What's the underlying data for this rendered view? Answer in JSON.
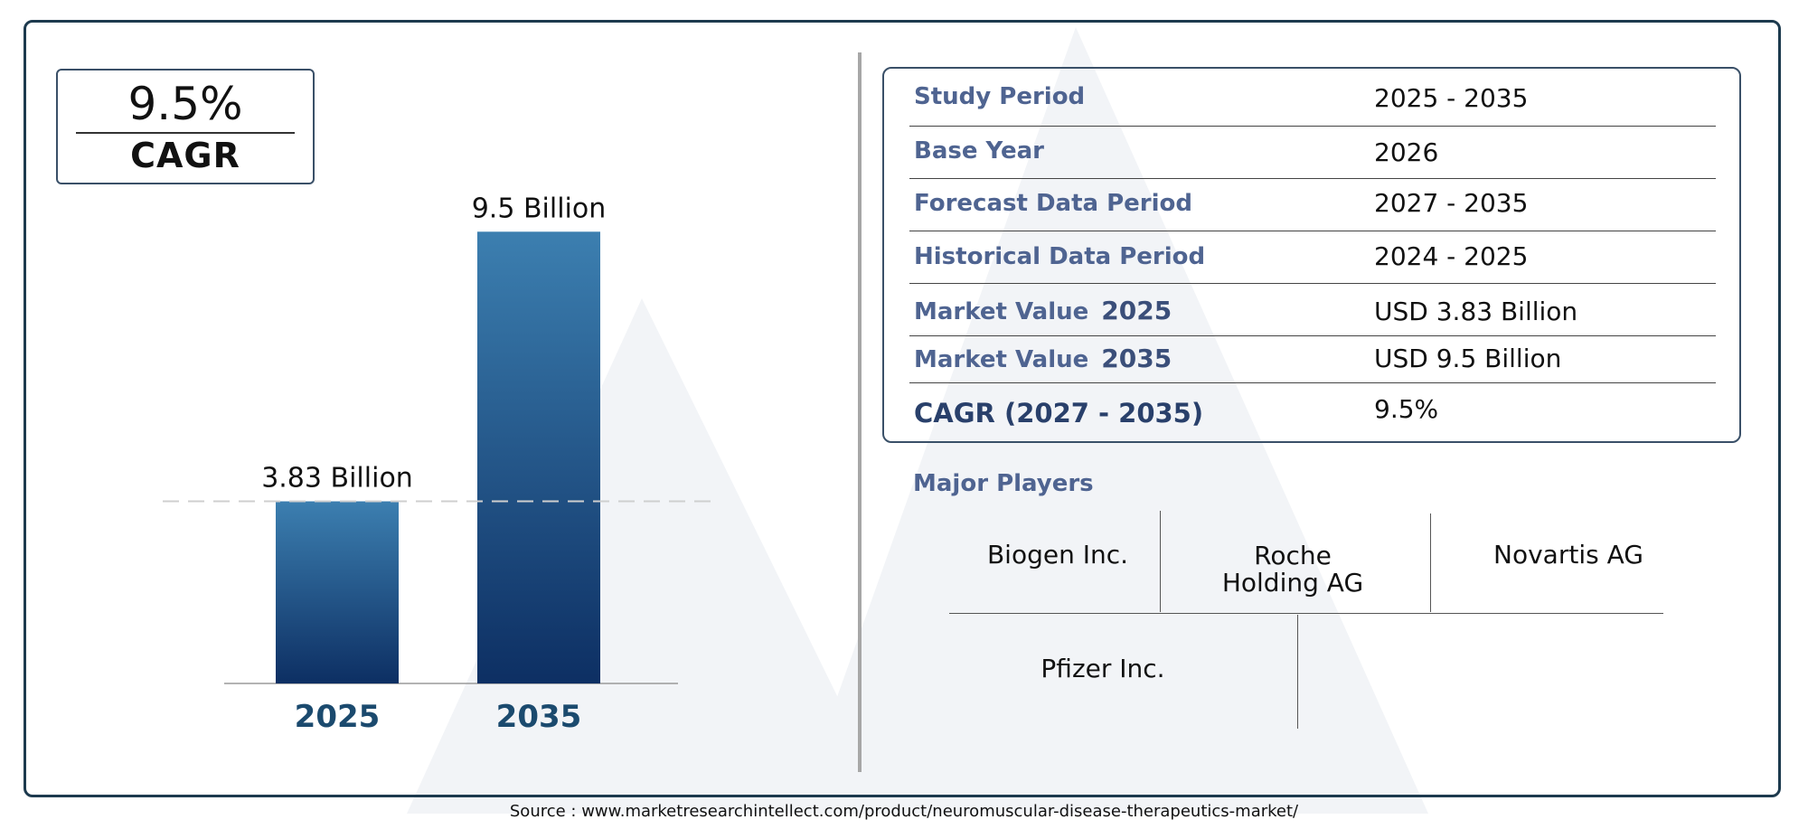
{
  "cagr_box": {
    "value": "9.5%",
    "label": "CAGR"
  },
  "chart_data": {
    "type": "bar",
    "categories": [
      "2025",
      "2035"
    ],
    "values": [
      3.83,
      9.5
    ],
    "data_labels": [
      "3.83 Billion",
      "9.5 Billion"
    ],
    "ylim": [
      0,
      10
    ],
    "reference_line_value": 3.83,
    "bar_gradient": [
      "#3c7fb0",
      "#0d2f63"
    ],
    "category_color": "#1b4a6e",
    "grid": false
  },
  "info_table": {
    "rows": [
      {
        "label": "Study Period",
        "value": "2025 - 2035"
      },
      {
        "label": "Base Year",
        "value": "2026"
      },
      {
        "label": "Forecast Data Period",
        "value": "2027 - 2035"
      },
      {
        "label": "Historical Data Period",
        "value": "2024 - 2025"
      },
      {
        "label": "Market Value",
        "year": "2025",
        "value": "USD 3.83 Billion"
      },
      {
        "label": "Market Value",
        "year": "2035",
        "value": "USD 9.5 Billion"
      },
      {
        "label": "CAGR (2027 - 2035)",
        "value": "9.5%"
      }
    ]
  },
  "players": {
    "title": "Major Players",
    "names": [
      "Biogen Inc.",
      "Roche\nHolding AG",
      "Novartis AG",
      "Pfizer Inc."
    ]
  },
  "source": "Source : www.marketresearchintellect.com/product/neuromuscular-disease-therapeutics-market/",
  "colors": {
    "frame": "#1d3a4e",
    "label_blue": "#4f6491",
    "watermark": "#eef1f5"
  }
}
